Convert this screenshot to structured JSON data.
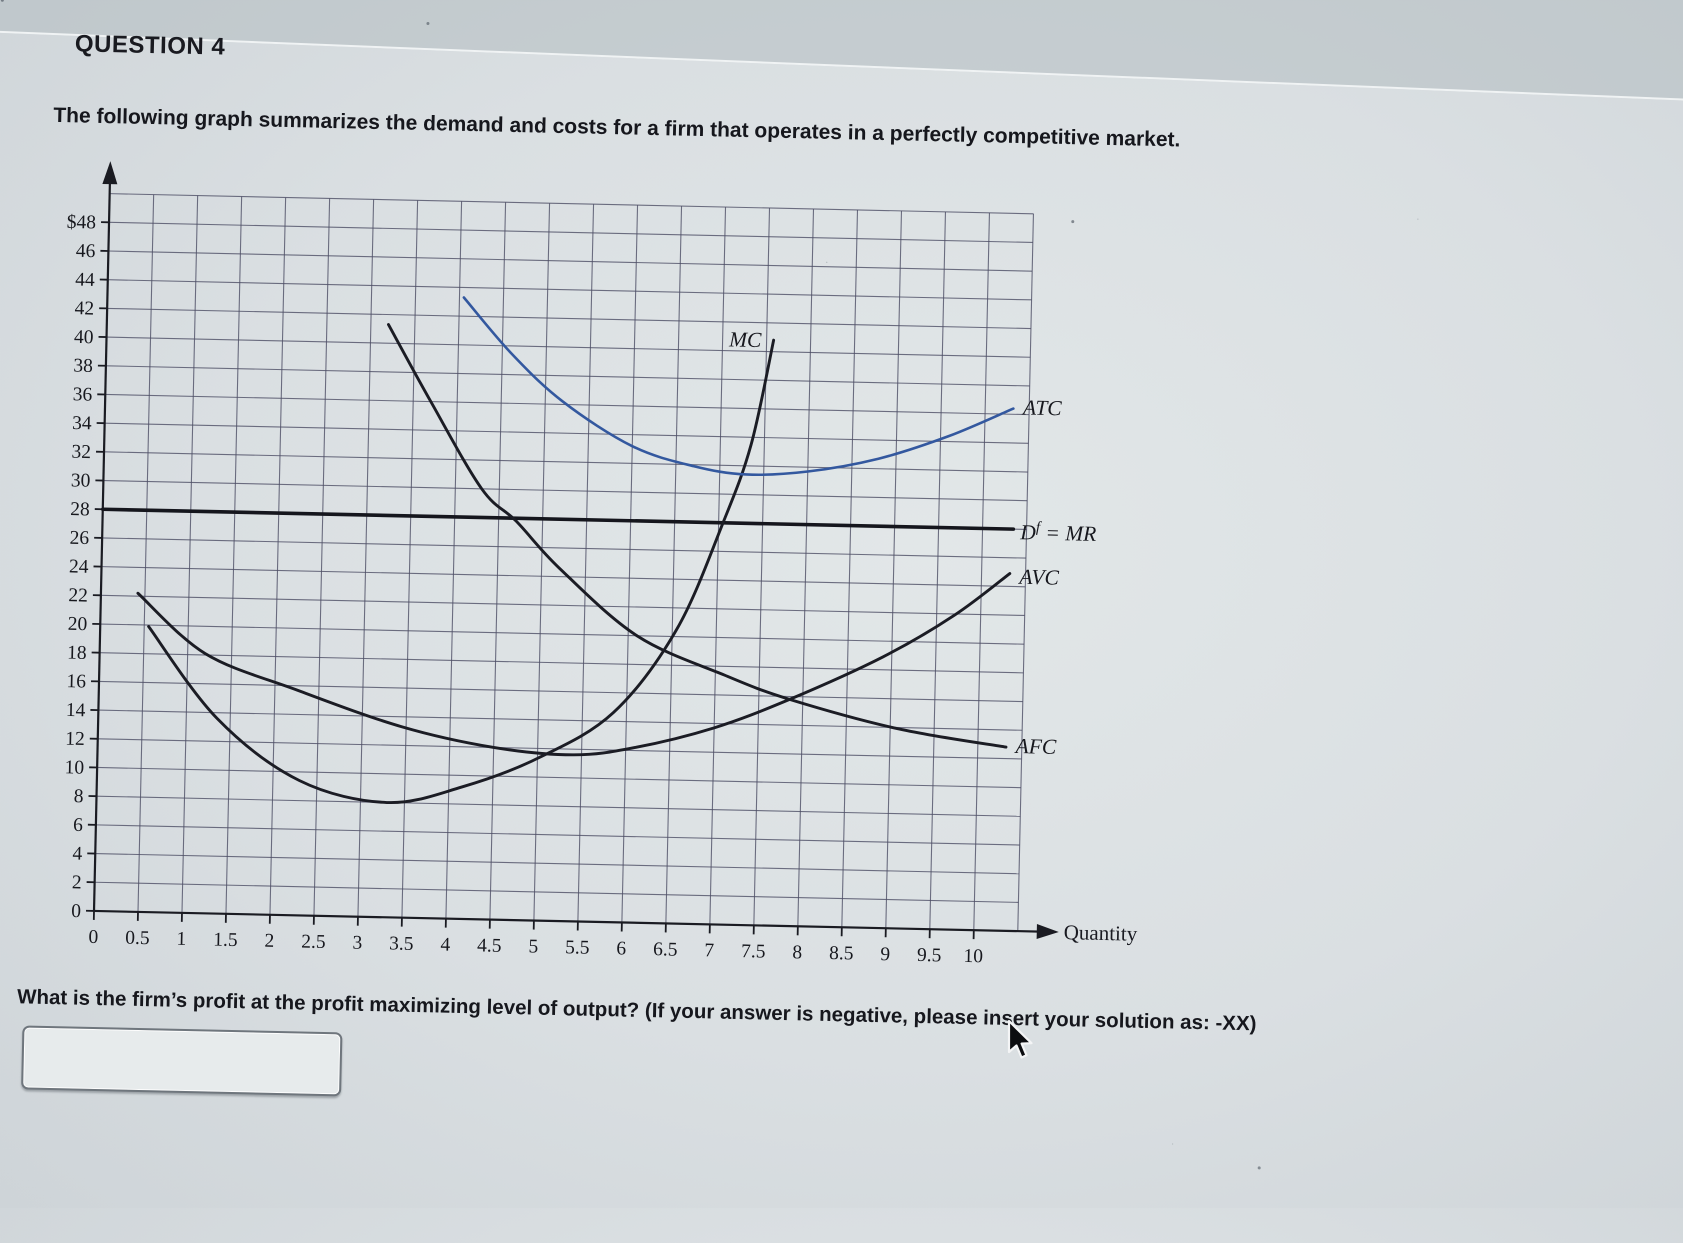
{
  "page": {
    "bg": "#dadfe2"
  },
  "header": {
    "title": "QUESTION 4"
  },
  "intro": {
    "text": "The following graph summarizes the demand and costs for a firm that operates in a perfectly competitive market."
  },
  "chart_data": {
    "type": "line",
    "title": "",
    "xlabel": "Quantity",
    "ylabel": "$",
    "xlim": [
      0,
      10.5
    ],
    "ylim": [
      0,
      50
    ],
    "grid": true,
    "x_grid_step": 0.5,
    "y_grid_step": 2,
    "x_ticks": [
      {
        "v": 0,
        "label": "0"
      },
      {
        "v": 0.5,
        "label": "0.5"
      },
      {
        "v": 1,
        "label": "1"
      },
      {
        "v": 1.5,
        "label": "1.5"
      },
      {
        "v": 2,
        "label": "2"
      },
      {
        "v": 2.5,
        "label": "2.5"
      },
      {
        "v": 3,
        "label": "3"
      },
      {
        "v": 3.5,
        "label": "3.5"
      },
      {
        "v": 4,
        "label": "4"
      },
      {
        "v": 4.5,
        "label": "4.5"
      },
      {
        "v": 5,
        "label": "5"
      },
      {
        "v": 5.5,
        "label": "5.5"
      },
      {
        "v": 6,
        "label": "6"
      },
      {
        "v": 6.5,
        "label": "6.5"
      },
      {
        "v": 7,
        "label": "7"
      },
      {
        "v": 7.5,
        "label": "7.5"
      },
      {
        "v": 8,
        "label": "8"
      },
      {
        "v": 8.5,
        "label": "8.5"
      },
      {
        "v": 9,
        "label": "9"
      },
      {
        "v": 9.5,
        "label": "9.5"
      },
      {
        "v": 10,
        "label": "10"
      }
    ],
    "y_ticks": [
      {
        "v": 48,
        "label": "$48"
      },
      {
        "v": 46,
        "label": "46"
      },
      {
        "v": 44,
        "label": "44"
      },
      {
        "v": 42,
        "label": "42"
      },
      {
        "v": 40,
        "label": "40"
      },
      {
        "v": 38,
        "label": "38"
      },
      {
        "v": 36,
        "label": "36"
      },
      {
        "v": 34,
        "label": "34"
      },
      {
        "v": 32,
        "label": "32"
      },
      {
        "v": 30,
        "label": "30"
      },
      {
        "v": 28,
        "label": "28"
      },
      {
        "v": 26,
        "label": "26"
      },
      {
        "v": 24,
        "label": "24"
      },
      {
        "v": 22,
        "label": "22"
      },
      {
        "v": 20,
        "label": "20"
      },
      {
        "v": 18,
        "label": "18"
      },
      {
        "v": 16,
        "label": "16"
      },
      {
        "v": 14,
        "label": "14"
      },
      {
        "v": 12,
        "label": "12"
      },
      {
        "v": 10,
        "label": "10"
      },
      {
        "v": 8,
        "label": "8"
      },
      {
        "v": 6,
        "label": "6"
      },
      {
        "v": 4,
        "label": "4"
      },
      {
        "v": 2,
        "label": "2"
      },
      {
        "v": 0,
        "label": "0"
      }
    ],
    "series": [
      {
        "name": "MR",
        "label_parts": {
          "base": "D",
          "sup": "f",
          "rest": " = MR"
        },
        "color": "#15161d",
        "width": 3.6,
        "smooth": false,
        "label_anchor": [
          10.43,
          27.3
        ],
        "label_align": "start",
        "points": [
          [
            0,
            28
          ],
          [
            10.35,
            28
          ]
        ]
      },
      {
        "name": "MC",
        "label": "MC",
        "color": "#1b1c24",
        "width": 2.9,
        "smooth": true,
        "label_anchor": [
          7.44,
          40.3
        ],
        "label_align": "end",
        "points": [
          [
            0.55,
            19.9
          ],
          [
            1.35,
            13.6
          ],
          [
            2.3,
            9.4
          ],
          [
            3.3,
            8.0
          ],
          [
            4.15,
            9.2
          ],
          [
            5.0,
            11.3
          ],
          [
            5.85,
            14.6
          ],
          [
            6.55,
            20.5
          ],
          [
            7.05,
            28.0
          ],
          [
            7.35,
            33.5
          ],
          [
            7.58,
            40.8
          ]
        ]
      },
      {
        "name": "ATC",
        "label": "ATC",
        "color": "#33589f",
        "width": 2.6,
        "smooth": true,
        "label_anchor": [
          10.43,
          36.0
        ],
        "label_align": "start",
        "points": [
          [
            4.05,
            43.3
          ],
          [
            4.6,
            39.5
          ],
          [
            5.2,
            36.2
          ],
          [
            6.0,
            33.2
          ],
          [
            6.7,
            31.9
          ],
          [
            7.3,
            31.4
          ],
          [
            8.0,
            31.7
          ],
          [
            8.8,
            32.7
          ],
          [
            9.6,
            34.4
          ],
          [
            10.32,
            36.4
          ]
        ]
      },
      {
        "name": "AVC",
        "label": "AVC",
        "color": "#1b1c24",
        "width": 2.9,
        "smooth": true,
        "label_anchor": [
          10.43,
          24.2
        ],
        "label_align": "start",
        "points": [
          [
            0.42,
            22.2
          ],
          [
            1.2,
            18.1
          ],
          [
            2.25,
            15.7
          ],
          [
            3.45,
            13.3
          ],
          [
            4.5,
            12.0
          ],
          [
            5.4,
            11.6
          ],
          [
            6.1,
            12.2
          ],
          [
            7.0,
            13.7
          ],
          [
            7.85,
            15.8
          ],
          [
            8.9,
            18.9
          ],
          [
            9.7,
            21.9
          ],
          [
            10.32,
            24.9
          ]
        ]
      },
      {
        "name": "AFC",
        "label": "AFC",
        "color": "#1b1c24",
        "width": 2.9,
        "smooth": true,
        "label_anchor": [
          10.43,
          12.4
        ],
        "label_align": "start",
        "points": [
          [
            3.2,
            41.3
          ],
          [
            3.7,
            36.0
          ],
          [
            4.3,
            30.0
          ],
          [
            4.7,
            27.8
          ],
          [
            5.2,
            24.6
          ],
          [
            6.1,
            20.0
          ],
          [
            7.1,
            17.4
          ],
          [
            7.85,
            15.8
          ],
          [
            9.1,
            13.9
          ],
          [
            10.32,
            12.8
          ]
        ]
      }
    ],
    "legend_position": "inline-labels",
    "axis_color": "#1a1b22",
    "grid_color": "#4e4f66"
  },
  "question": {
    "text": "What is the firm’s profit at the profit maximizing level of output? (If your answer is negative, please insert your solution as: -XX)",
    "answer_value": "",
    "answer_placeholder": ""
  },
  "icons": {
    "mouse_cursor": "arrow-pointer"
  }
}
